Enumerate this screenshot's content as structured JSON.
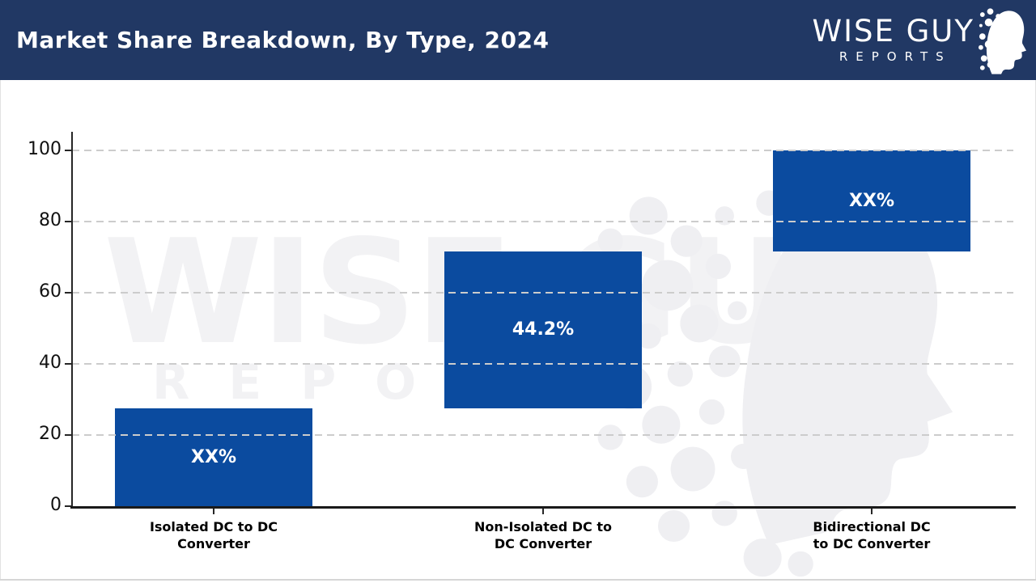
{
  "header": {
    "title": "Market Share Breakdown, By Type, 2024",
    "bg_color": "#213864",
    "logo": {
      "line1": "WISE GUY",
      "line2": "REPORTS"
    }
  },
  "watermark": {
    "line1": "WISE GUY",
    "line2": "REPORTS"
  },
  "chart_data": {
    "type": "bar",
    "subtype": "floating-stacked-waterfall",
    "title": "Market Share Breakdown, By Type, 2024",
    "xlabel": "",
    "ylabel": "",
    "ylim": [
      0,
      105
    ],
    "y_ticks": [
      0,
      20,
      40,
      60,
      80,
      100
    ],
    "grid": "horizontal-dashed-over-bars",
    "legend": "none",
    "categories": [
      "Isolated DC to DC\nConverter",
      "Non-Isolated DC to\nDC Converter",
      "Bidirectional DC\nto DC Converter"
    ],
    "bars": [
      {
        "category": "Isolated DC to DC Converter",
        "start": 0,
        "end": 27.5,
        "value_label": "XX%"
      },
      {
        "category": "Non-Isolated DC to DC Converter",
        "start": 27.5,
        "end": 71.7,
        "value_label": "44.2%"
      },
      {
        "category": "Bidirectional DC to DC Converter",
        "start": 71.7,
        "end": 100,
        "value_label": "XX%"
      }
    ],
    "colors": {
      "bar": "#0b4b9f",
      "bar_label": "#ffffff",
      "grid": "#cccccc",
      "axis": "#1a1a1a",
      "tick_label": "#111111",
      "category_label": "#000000"
    }
  }
}
